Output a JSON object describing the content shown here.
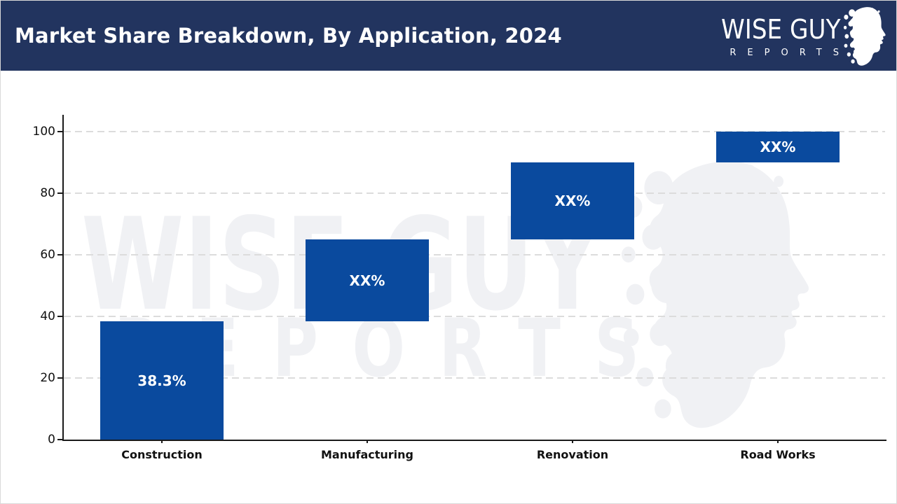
{
  "header": {
    "title": "Market Share Breakdown, By Application, 2024",
    "logo": {
      "name": "WISE GUY",
      "sub": "REPORTS"
    }
  },
  "watermark": {
    "name": "WISE GUY",
    "sub": "REPORTS"
  },
  "colors": {
    "header_bg": "#22345f",
    "title_text": "#ffffff",
    "bar": "#0a4a9e",
    "bar_label": "#ffffff",
    "axis": "#1a1a1a",
    "gridline": "#dcdcdc",
    "watermark": "#f0f1f4",
    "frame_border": "#d9d9d9"
  },
  "chart_data": {
    "type": "bar",
    "subtype": "waterfall",
    "title": "Market Share Breakdown, By Application, 2024",
    "categories": [
      "Construction",
      "Manufacturing",
      "Renovation",
      "Road Works"
    ],
    "series": [
      {
        "name": "Market Share (%)",
        "segments": [
          {
            "category": "Construction",
            "start": 0,
            "end": 38.3,
            "label": "38.3%"
          },
          {
            "category": "Manufacturing",
            "start": 38.3,
            "end": 65,
            "label": "XX%"
          },
          {
            "category": "Renovation",
            "start": 65,
            "end": 90,
            "label": "XX%"
          },
          {
            "category": "Road Works",
            "start": 90,
            "end": 100,
            "label": "XX%"
          }
        ]
      }
    ],
    "xlabel": "",
    "ylabel": "",
    "ylim": [
      0,
      100
    ],
    "yticks": [
      0,
      20,
      40,
      60,
      80,
      100
    ],
    "grid": "horizontal-dashed",
    "legend": "none"
  }
}
